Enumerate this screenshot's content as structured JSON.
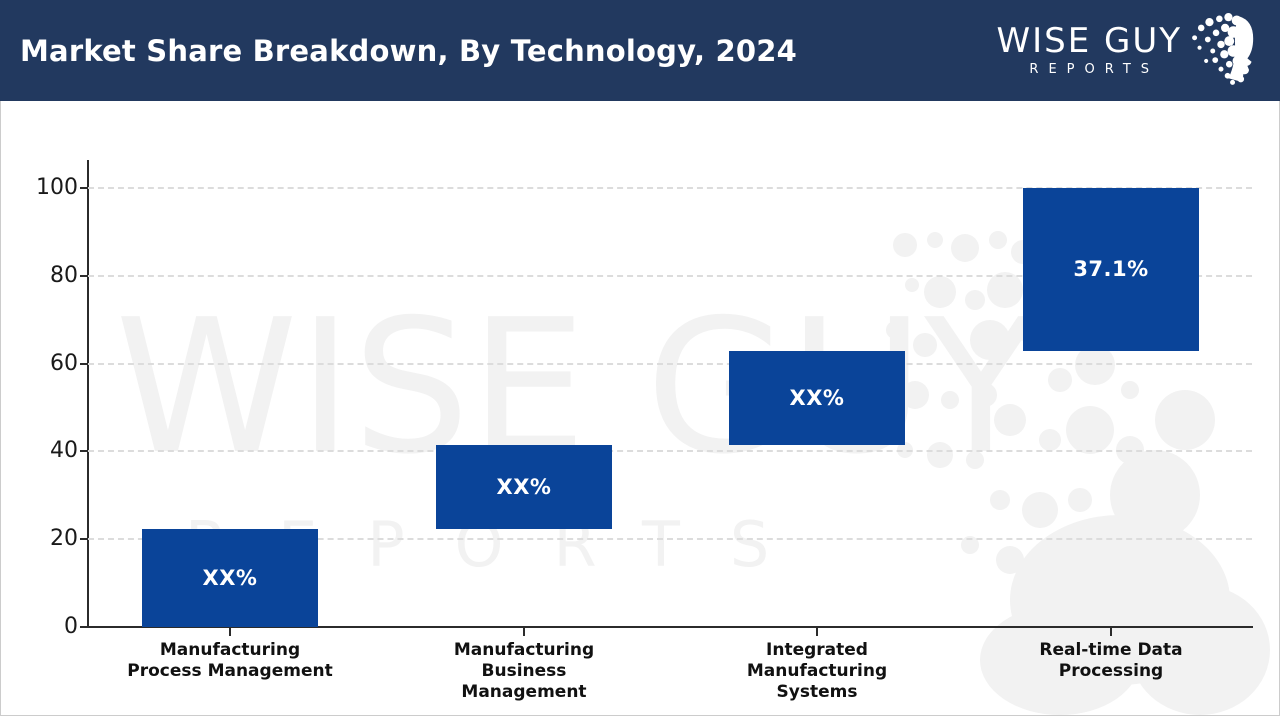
{
  "header": {
    "title": "Market Share Breakdown, By Technology, 2024",
    "bg_color": "#22395F",
    "logo": {
      "brand": "WISE GUY",
      "sub": "REPORTS"
    }
  },
  "watermark": {
    "brand": "WISE GUY",
    "sub": "REPORTS"
  },
  "chart_data": {
    "type": "bar",
    "subtype": "waterfall",
    "title": "Market Share Breakdown, By Technology, 2024",
    "xlabel": "",
    "ylabel": "",
    "ylim": [
      0,
      100
    ],
    "yticks": [
      0,
      20,
      40,
      60,
      80,
      100
    ],
    "grid": "horizontal-dashed",
    "legend": "none",
    "bar_color": "#0a4499",
    "categories": [
      "Manufacturing Process Management",
      "Manufacturing Business Management",
      "Integrated Manufacturing Systems",
      "Real-time Data Processing"
    ],
    "categories_lines": [
      [
        "Manufacturing",
        "Process Management"
      ],
      [
        "Manufacturing",
        "Business",
        "Management"
      ],
      [
        "Integrated",
        "Manufacturing",
        "Systems"
      ],
      [
        "Real-time Data",
        "Processing"
      ]
    ],
    "segments": [
      {
        "category": "Manufacturing Process Management",
        "start": 0,
        "end": 22.4,
        "value": 22.4,
        "label": "XX%"
      },
      {
        "category": "Manufacturing Business Management",
        "start": 22.4,
        "end": 41.5,
        "value": 19.1,
        "label": "XX%"
      },
      {
        "category": "Integrated Manufacturing Systems",
        "start": 41.5,
        "end": 62.9,
        "value": 21.4,
        "label": "XX%"
      },
      {
        "category": "Real-time Data Processing",
        "start": 62.9,
        "end": 100,
        "value": 37.1,
        "label": "37.1%"
      }
    ]
  }
}
